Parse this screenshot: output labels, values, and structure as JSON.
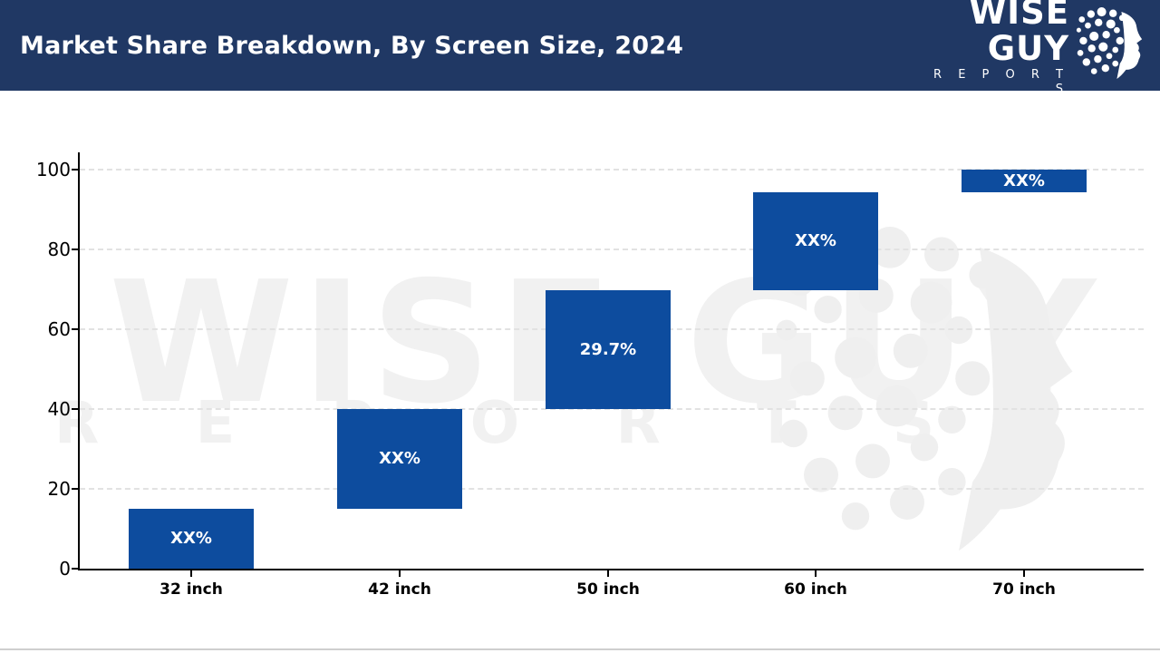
{
  "header": {
    "title": "Market Share Breakdown, By Screen Size, 2024",
    "bg_color": "#203864",
    "logo": {
      "line1": "WISE GUY",
      "line2": "R E P O R T S"
    }
  },
  "watermark": {
    "line1": "WISE GUY",
    "line2": "R E P O R T S"
  },
  "colors": {
    "bar": "#0d4c9e",
    "bar_label": "#ffffff",
    "gridline": "#e2e2e2",
    "axis": "#000000",
    "watermark": "#f1f1f1",
    "bottom_rule": "#cfcfcf"
  },
  "chart_data": {
    "type": "bar",
    "subtype": "floating-waterfall",
    "title": "Market Share Breakdown, By Screen Size, 2024",
    "categories": [
      "32 inch",
      "42 inch",
      "50 inch",
      "60 inch",
      "70 inch"
    ],
    "segments": [
      {
        "category": "32 inch",
        "start": 0,
        "end": 15,
        "value": 15,
        "label": "XX%"
      },
      {
        "category": "42 inch",
        "start": 15,
        "end": 40,
        "value": 25,
        "label": "XX%"
      },
      {
        "category": "50 inch",
        "start": 40,
        "end": 69.7,
        "value": 29.7,
        "label": "29.7%"
      },
      {
        "category": "60 inch",
        "start": 69.7,
        "end": 94.3,
        "value": 24.6,
        "label": "XX%"
      },
      {
        "category": "70 inch",
        "start": 94.3,
        "end": 100,
        "value": 5.7,
        "label": "XX%"
      }
    ],
    "yticks": [
      0,
      20,
      40,
      60,
      80,
      100
    ],
    "ylim": [
      0,
      104
    ],
    "xlabel": "",
    "ylabel": "",
    "grid": "horizontal-dashed",
    "legend": "none"
  }
}
